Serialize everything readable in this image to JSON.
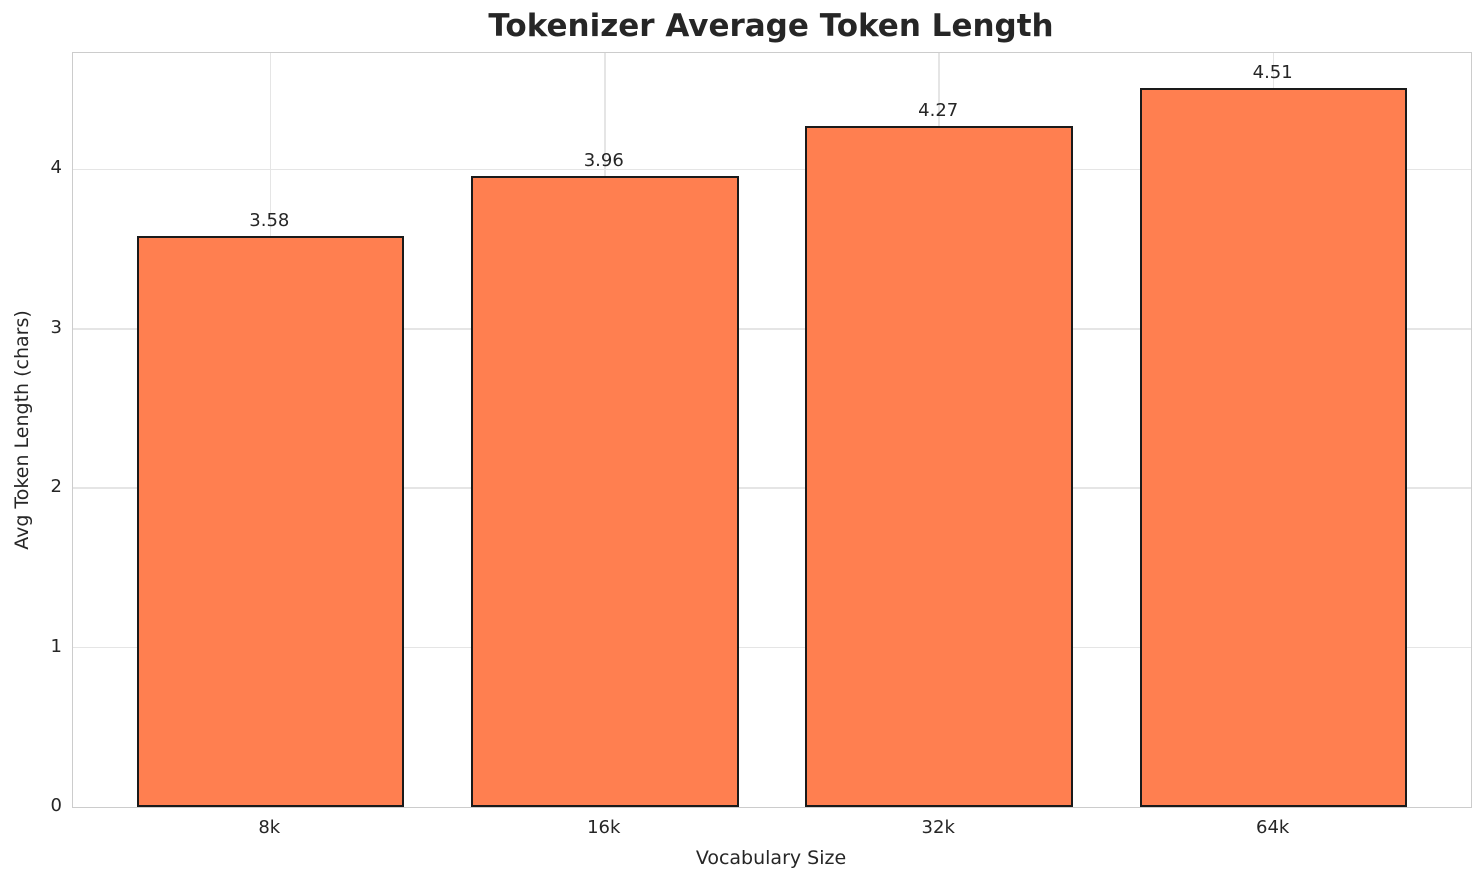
{
  "chart_data": {
    "type": "bar",
    "title": "Tokenizer Average Token Length",
    "xlabel": "Vocabulary Size",
    "ylabel": "Avg Token Length (chars)",
    "categories": [
      "8k",
      "16k",
      "32k",
      "64k"
    ],
    "values": [
      3.58,
      3.96,
      4.27,
      4.51
    ],
    "value_labels": [
      "3.58",
      "3.96",
      "4.27",
      "4.51"
    ],
    "yticks": [
      "0",
      "1",
      "2",
      "3",
      "4"
    ],
    "ylim": [
      0,
      4.73
    ],
    "grid": true,
    "legend": null,
    "colors": {
      "bar_fill": "#FF7F50",
      "bar_edge": "#1a1a1a",
      "grid_line": "#e5e5e5",
      "spine": "#cccccc",
      "text": "#262626",
      "background": "#ffffff"
    }
  }
}
